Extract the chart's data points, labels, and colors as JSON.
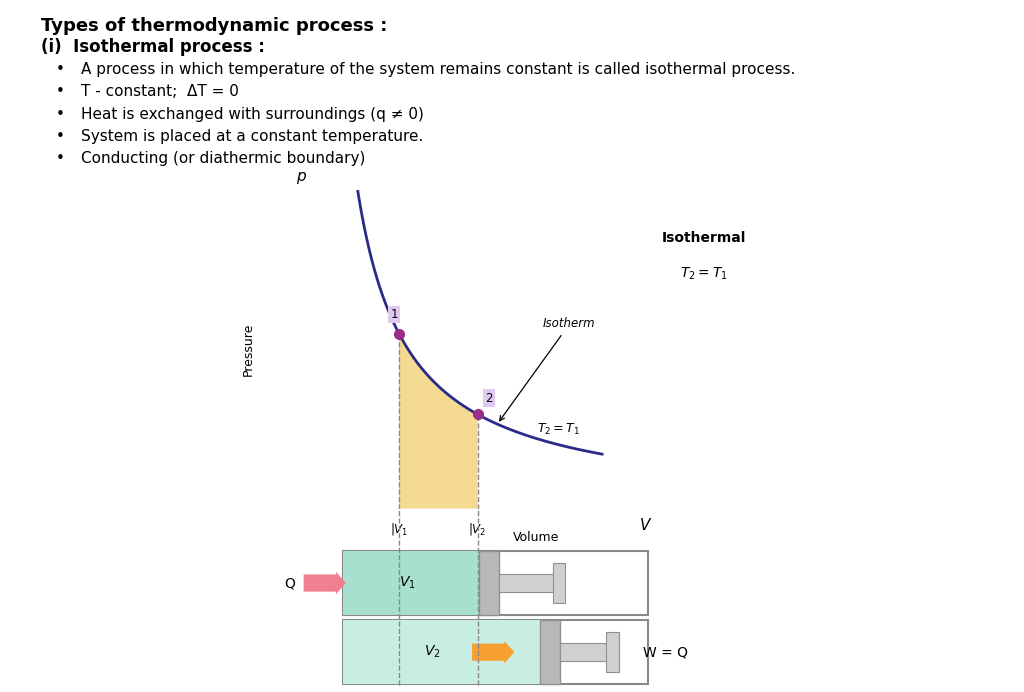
{
  "title": "Types of thermodynamic process :",
  "subtitle": "(i)  Isothermal process :",
  "bullets": [
    "A process in which temperature of the system remains constant is called isothermal process.",
    "T - constant;  ΔT = 0",
    "Heat is exchanged with surroundings (q ≠ 0)",
    "System is placed at a constant temperature.",
    "Conducting (or diathermic boundary)"
  ],
  "bg_color": "#ffffff",
  "text_color": "#000000",
  "curve_color": "#2b2b8a",
  "fill_color": "#f5d98c",
  "point_color": "#9b2d8a",
  "isothermal_label_bg": "#dbb8e8",
  "cyan_fill": "#a8e0d0",
  "cyan_fill2": "#c8eee4",
  "pink_arrow": "#f08090",
  "orange_arrow": "#f5a030",
  "piston_color": "#b8b8b8",
  "piston_dark": "#909090"
}
